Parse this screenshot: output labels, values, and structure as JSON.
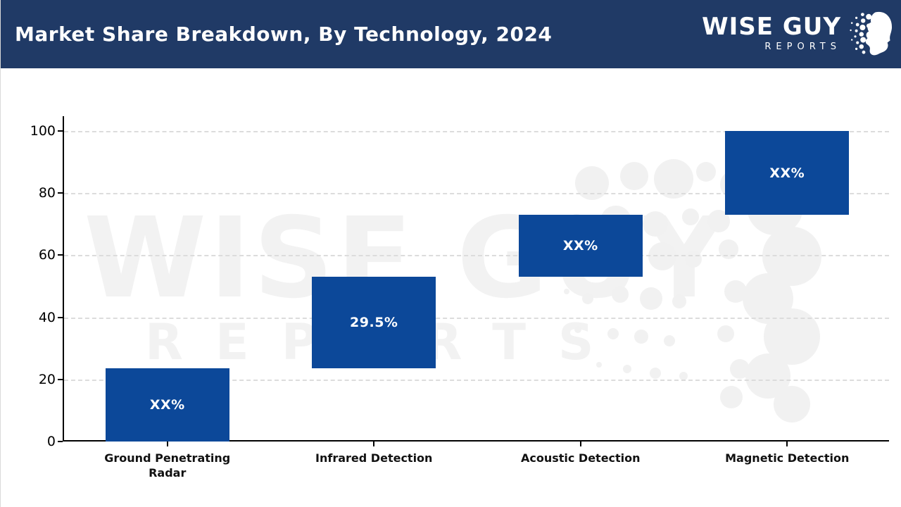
{
  "header": {
    "title": "Market Share Breakdown, By Technology, 2024",
    "bg_color": "#203a66",
    "logo": {
      "wordmark": "WISE GUY",
      "subtext": "REPORTS"
    }
  },
  "watermark": {
    "wordmark": "WISE GUY",
    "subtext": "REPORTS"
  },
  "chart_data": {
    "type": "bar",
    "variant": "floating-waterfall",
    "title": "Market Share Breakdown, By Technology, 2024",
    "categories": [
      "Ground Penetrating Radar",
      "Infrared Detection",
      "Acoustic Detection",
      "Magnetic Detection"
    ],
    "series": [
      {
        "name": "Market Share (%)",
        "segments": [
          {
            "category": "Ground Penetrating Radar",
            "start": 0,
            "end": 23.5,
            "label": "XX%"
          },
          {
            "category": "Infrared Detection",
            "start": 23.5,
            "end": 53,
            "label": "29.5%"
          },
          {
            "category": "Acoustic Detection",
            "start": 53,
            "end": 73,
            "label": "XX%"
          },
          {
            "category": "Magnetic Detection",
            "start": 73,
            "end": 100,
            "label": "XX%"
          }
        ]
      }
    ],
    "ylim": [
      0,
      100
    ],
    "yticks": [
      0,
      20,
      40,
      60,
      80,
      100
    ],
    "xlabel": "",
    "ylabel": "",
    "grid": "horizontal-dashed",
    "legend": "none",
    "bar_color": "#0c4899",
    "bar_label_color": "#ffffff",
    "grid_color": "#dcdcdc",
    "axis_color": "#000000"
  }
}
